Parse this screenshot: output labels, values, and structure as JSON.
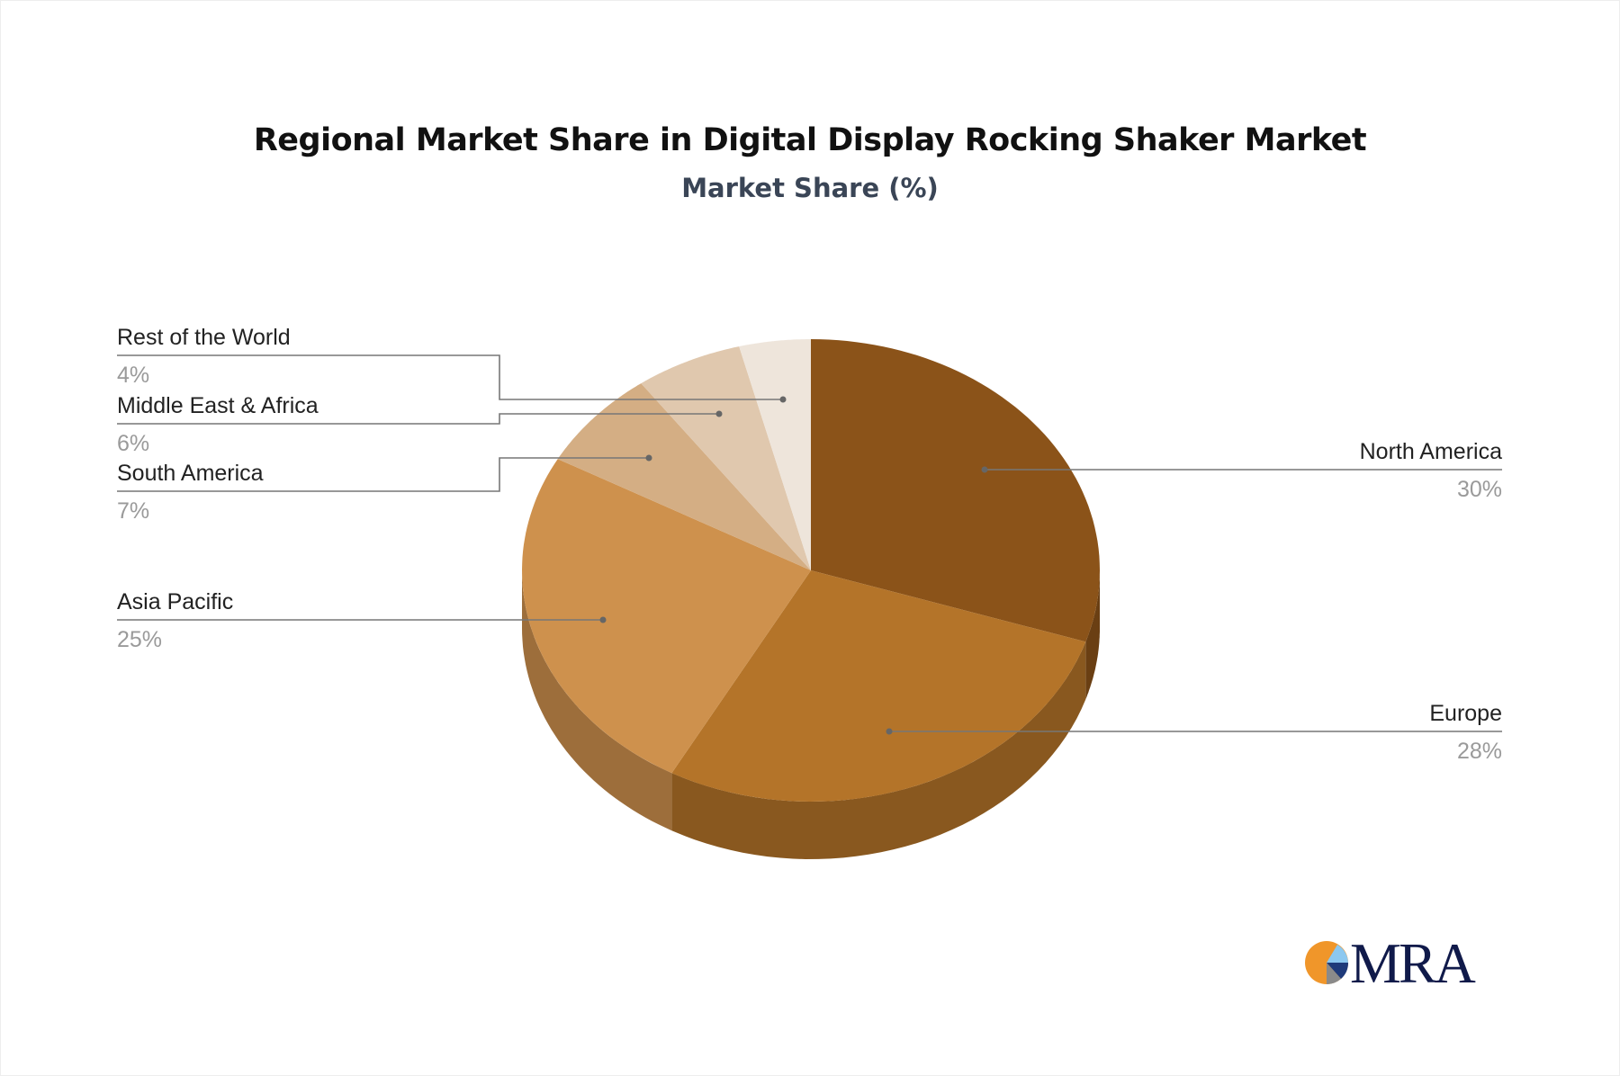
{
  "chart_data": {
    "type": "pie",
    "title": "Regional Market Share in Digital Display Rocking Shaker Market",
    "subtitle": "Market Share (%)",
    "style": "3d",
    "start": "top, clockwise",
    "slices": [
      {
        "label": "North America",
        "value": 30,
        "pct_label": "30%",
        "color": "#8B5319"
      },
      {
        "label": "Europe",
        "value": 28,
        "pct_label": "28%",
        "color": "#B47429"
      },
      {
        "label": "Asia Pacific",
        "value": 25,
        "pct_label": "25%",
        "color": "#CE914D"
      },
      {
        "label": "South America",
        "value": 7,
        "pct_label": "7%",
        "color": "#D4AE84"
      },
      {
        "label": "Middle East & Africa",
        "value": 6,
        "pct_label": "6%",
        "color": "#E0C8AE"
      },
      {
        "label": "Rest of the World",
        "value": 4,
        "pct_label": "4%",
        "color": "#EEE5DB"
      }
    ]
  },
  "logo": {
    "text": "MRA",
    "colors": [
      "#F0962A",
      "#8CC8F0",
      "#1E3A7A",
      "#8A8A8A"
    ]
  }
}
